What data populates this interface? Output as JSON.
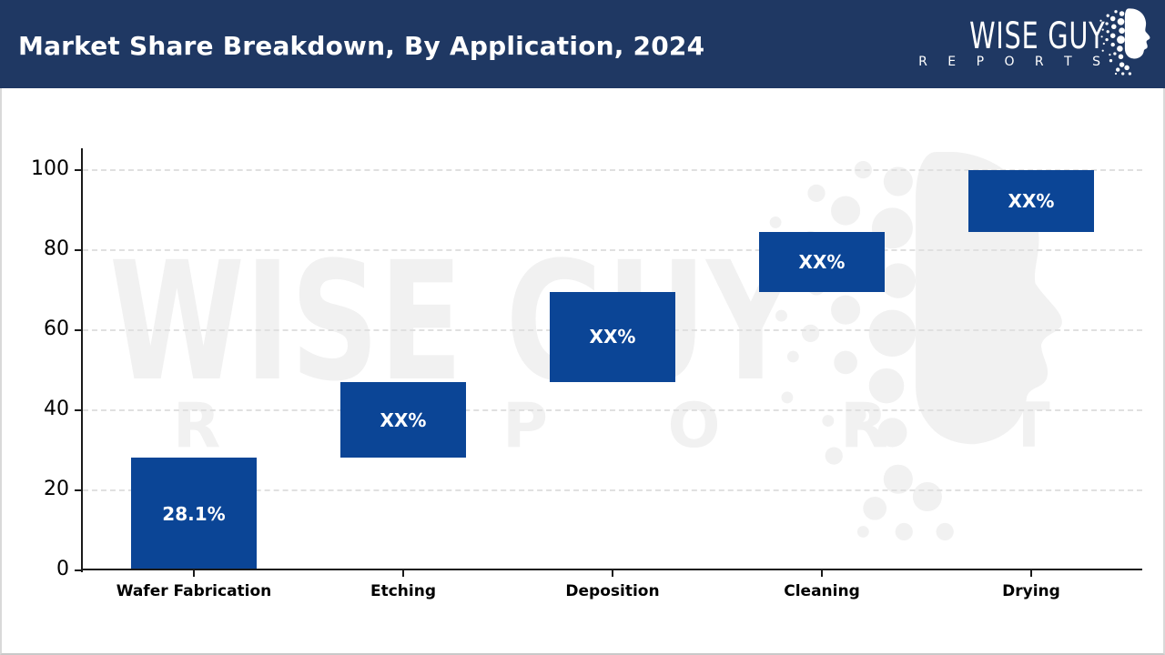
{
  "header": {
    "title": "Market Share Breakdown, By Application, 2024",
    "logo": {
      "line1": "WISE GUY",
      "line2": "R E P O R T S"
    }
  },
  "watermark": {
    "line1": "WISE GUY",
    "line2": "R E P O R T S"
  },
  "chart_data": {
    "type": "bar",
    "subtype": "waterfall",
    "title": "Market Share Breakdown, By Application, 2024",
    "categories": [
      "Wafer Fabrication",
      "Etching",
      "Deposition",
      "Cleaning",
      "Drying"
    ],
    "segments": [
      {
        "category": "Wafer Fabrication",
        "start": 0,
        "end": 28.1,
        "label": "28.1%"
      },
      {
        "category": "Etching",
        "start": 28.1,
        "end": 47.0,
        "label": "XX%"
      },
      {
        "category": "Deposition",
        "start": 47.0,
        "end": 69.6,
        "label": "XX%"
      },
      {
        "category": "Cleaning",
        "start": 69.6,
        "end": 84.5,
        "label": "XX%"
      },
      {
        "category": "Drying",
        "start": 84.5,
        "end": 100.0,
        "label": "XX%"
      }
    ],
    "values_increment": [
      28.1,
      18.9,
      22.6,
      14.9,
      15.5
    ],
    "bar_labels": [
      "28.1%",
      "XX%",
      "XX%",
      "XX%",
      "XX%"
    ],
    "xlabel": "",
    "ylabel": "",
    "y_ticks": [
      0,
      20,
      40,
      60,
      80,
      100
    ],
    "ylim": [
      0,
      105
    ],
    "grid": "horizontal-dashed",
    "legend": "none",
    "bar_color": "#0b4596",
    "bar_label_color": "#ffffff"
  },
  "colors": {
    "header_bg": "#1f3863",
    "header_text": "#ffffff",
    "bar": "#0b4596",
    "axis": "#1a1a1a",
    "grid": "#e0e0e0",
    "watermark": "#f1f1f1",
    "page_border": "#c9c9c9"
  }
}
